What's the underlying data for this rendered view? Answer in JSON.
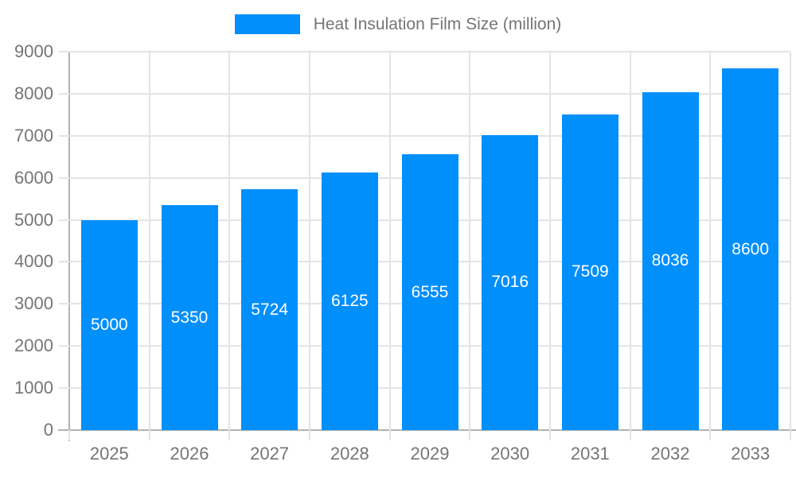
{
  "chart_data": {
    "type": "bar",
    "title": "Heat Insulation Film Size (million)",
    "categories": [
      "2025",
      "2026",
      "2027",
      "2028",
      "2029",
      "2030",
      "2031",
      "2032",
      "2033"
    ],
    "values": [
      5000,
      5350,
      5724,
      6125,
      6555,
      7016,
      7509,
      8036,
      8600
    ],
    "xlabel": "",
    "ylabel": "",
    "ylim": [
      0,
      9000
    ],
    "yticks": [
      0,
      1000,
      2000,
      3000,
      4000,
      5000,
      6000,
      7000,
      8000,
      9000
    ],
    "grid": true,
    "legend_position": "top-center",
    "value_label_position": "inside-center",
    "legend": {
      "swatch": "series-color-swatch",
      "label": "Heat Insulation Film Size (million)"
    }
  },
  "colors": {
    "bar": "#008FFB",
    "axis_text": "#757575",
    "legend_text": "#757575",
    "value_label_text": "#ffffff",
    "gridline": "#e4e4e4",
    "axis_line": "#b3b3b3",
    "background": "#ffffff"
  }
}
